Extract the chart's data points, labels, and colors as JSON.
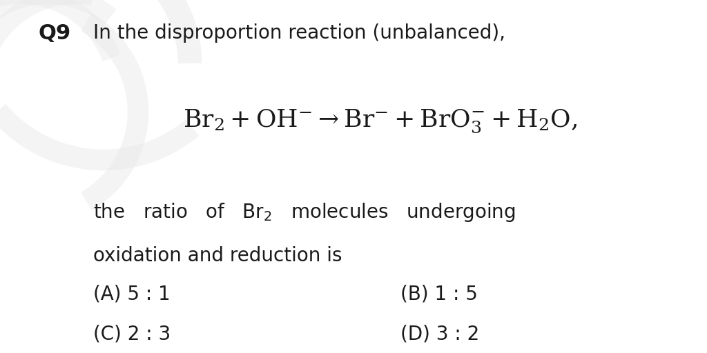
{
  "background_color": "#ffffff",
  "watermark_color": "#e8e8e8",
  "text_color": "#1a1a1a",
  "q_label": "Q9",
  "line1": "In the disproportion reaction (unbalanced),",
  "equation": "$\\mathrm{Br_2 + OH^{-} \\rightarrow Br^{-} + BrO_3^{-} + H_2O,}$",
  "line3": "the   ratio   of   $\\mathrm{Br_2}$   molecules   undergoing",
  "line4": "oxidation and reduction is",
  "optA": "(A) 5 : 1",
  "optB": "(B) 1 : 5",
  "optC": "(C) 2 : 3",
  "optD": "(D) 3 : 2",
  "fig_width": 10.24,
  "fig_height": 5.12,
  "dpi": 100
}
